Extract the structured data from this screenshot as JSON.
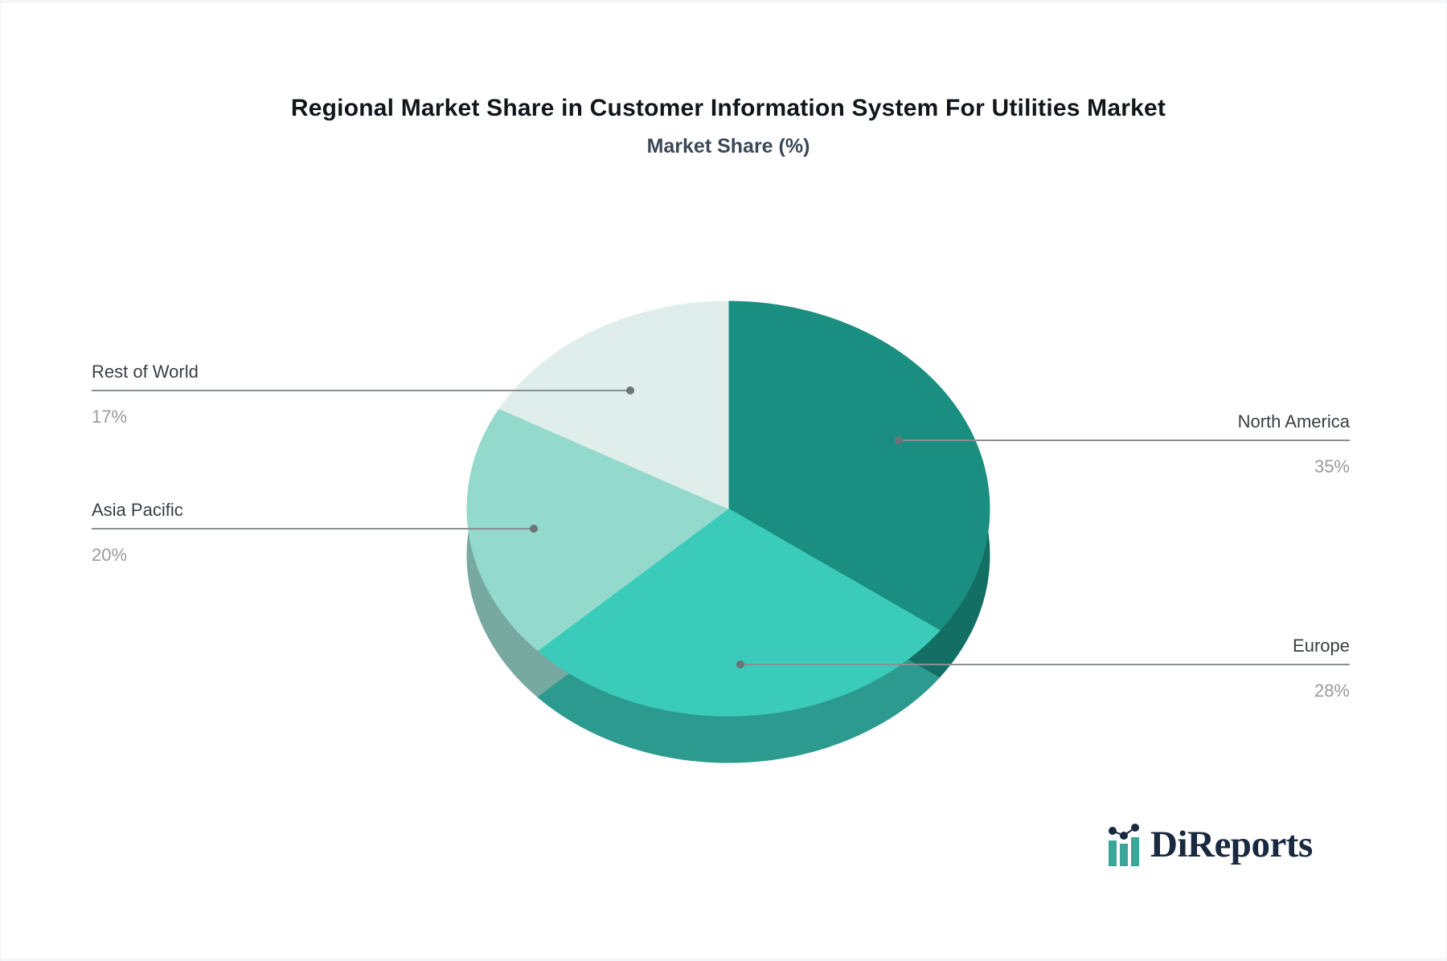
{
  "chart_data": {
    "type": "pie",
    "style": "3d",
    "title": "Regional Market Share in Customer Information System For Utilities Market",
    "subtitle": "Market Share (%)",
    "unit": "%",
    "direction": "clockwise",
    "start_angle_deg": 0,
    "legend_position": "callout-labels",
    "segments": [
      {
        "label": "North America",
        "value": 35,
        "value_text": "35%",
        "color": "#1a8e80",
        "side_color": "#136f64"
      },
      {
        "label": "Europe",
        "value": 28,
        "value_text": "28%",
        "color": "#3bcbba",
        "side_color": "#2d9a8f"
      },
      {
        "label": "Asia Pacific",
        "value": 20,
        "value_text": "20%",
        "color": "#93d9cc",
        "side_color": "#78a9a1"
      },
      {
        "label": "Rest of World",
        "value": 17,
        "value_text": "17%",
        "color": "#dfedeb",
        "side_color": "#c2d4d1"
      }
    ]
  },
  "branding": {
    "logo_text": "DiReports",
    "logo_icon": "bar-chart-logo-icon",
    "logo_text_color": "#192940",
    "logo_accent_color": "#3ba599"
  }
}
